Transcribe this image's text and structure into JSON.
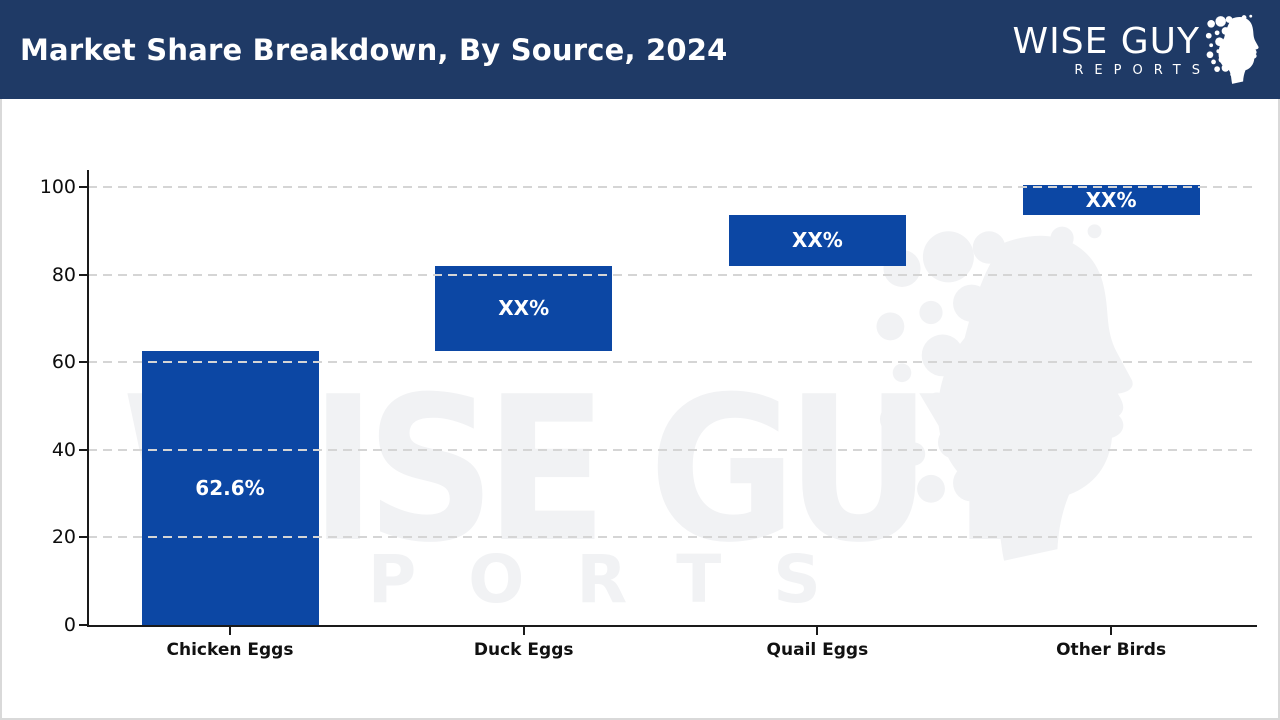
{
  "header": {
    "title": "Market Share Breakdown, By Source, 2024",
    "logo": {
      "line1": "WISE GUY",
      "line2": "REPORTS"
    }
  },
  "watermark": {
    "line1": "WISE GUY",
    "line2": "REPORTS"
  },
  "chart_data": {
    "type": "bar",
    "subtype": "waterfall",
    "title": "Market Share Breakdown, By Source, 2024",
    "categories": [
      "Chicken Eggs",
      "Duck Eggs",
      "Quail Eggs",
      "Other Birds"
    ],
    "series": [
      {
        "name": "Market Share (%)",
        "starts": [
          0,
          62.6,
          82.0,
          93.7
        ],
        "values": [
          62.6,
          19.4,
          11.7,
          6.8
        ],
        "labels": [
          "62.6%",
          "XX%",
          "XX%",
          "XX%"
        ]
      }
    ],
    "xlabel": "",
    "ylabel": "",
    "ylim": [
      0,
      104
    ],
    "yticks": [
      0,
      20,
      40,
      60,
      80,
      100
    ],
    "grid": "horizontal-dashed",
    "legend": "none",
    "bar_color": "#0c47a4",
    "bar_label_color": "#ffffff"
  },
  "colors": {
    "header_bg": "#1f3a66",
    "title_text": "#ffffff",
    "bar": "#0c47a4",
    "grid": "#d5d5d5",
    "axis": "#1a1a1a",
    "watermark": "#f1f2f4"
  }
}
